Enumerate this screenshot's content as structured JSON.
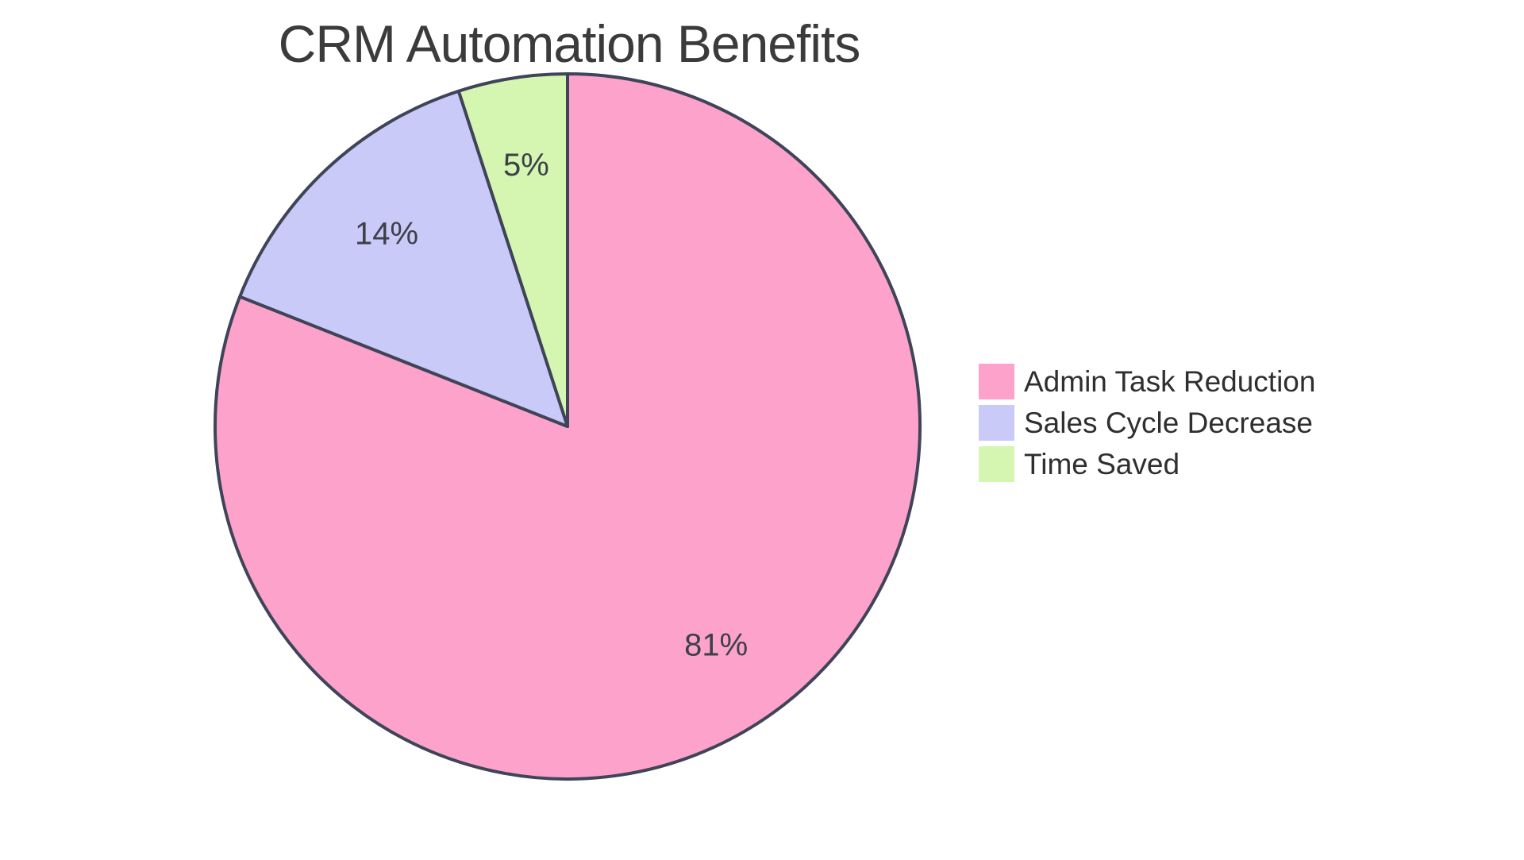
{
  "page": {
    "background": "#ffffff"
  },
  "chart_data": {
    "type": "pie",
    "title": "CRM Automation Benefits",
    "slices": [
      {
        "label": "Admin Task Reduction",
        "value": 81,
        "pct_label": "81%",
        "color": "#FCA2CB"
      },
      {
        "label": "Sales Cycle Decrease",
        "value": 14,
        "pct_label": "14%",
        "color": "#C9CAF7"
      },
      {
        "label": "Time Saved",
        "value": 5,
        "pct_label": "5%",
        "color": "#D5F6B1"
      }
    ],
    "start_angle_deg": 0,
    "direction": "clockwise",
    "outline_color": "#3F4458",
    "outline_width": 4,
    "label_color": "#3C4049",
    "title_color": "#3B3B3B",
    "legend_position": "right",
    "legend_text_color": "#2F2F2F"
  }
}
